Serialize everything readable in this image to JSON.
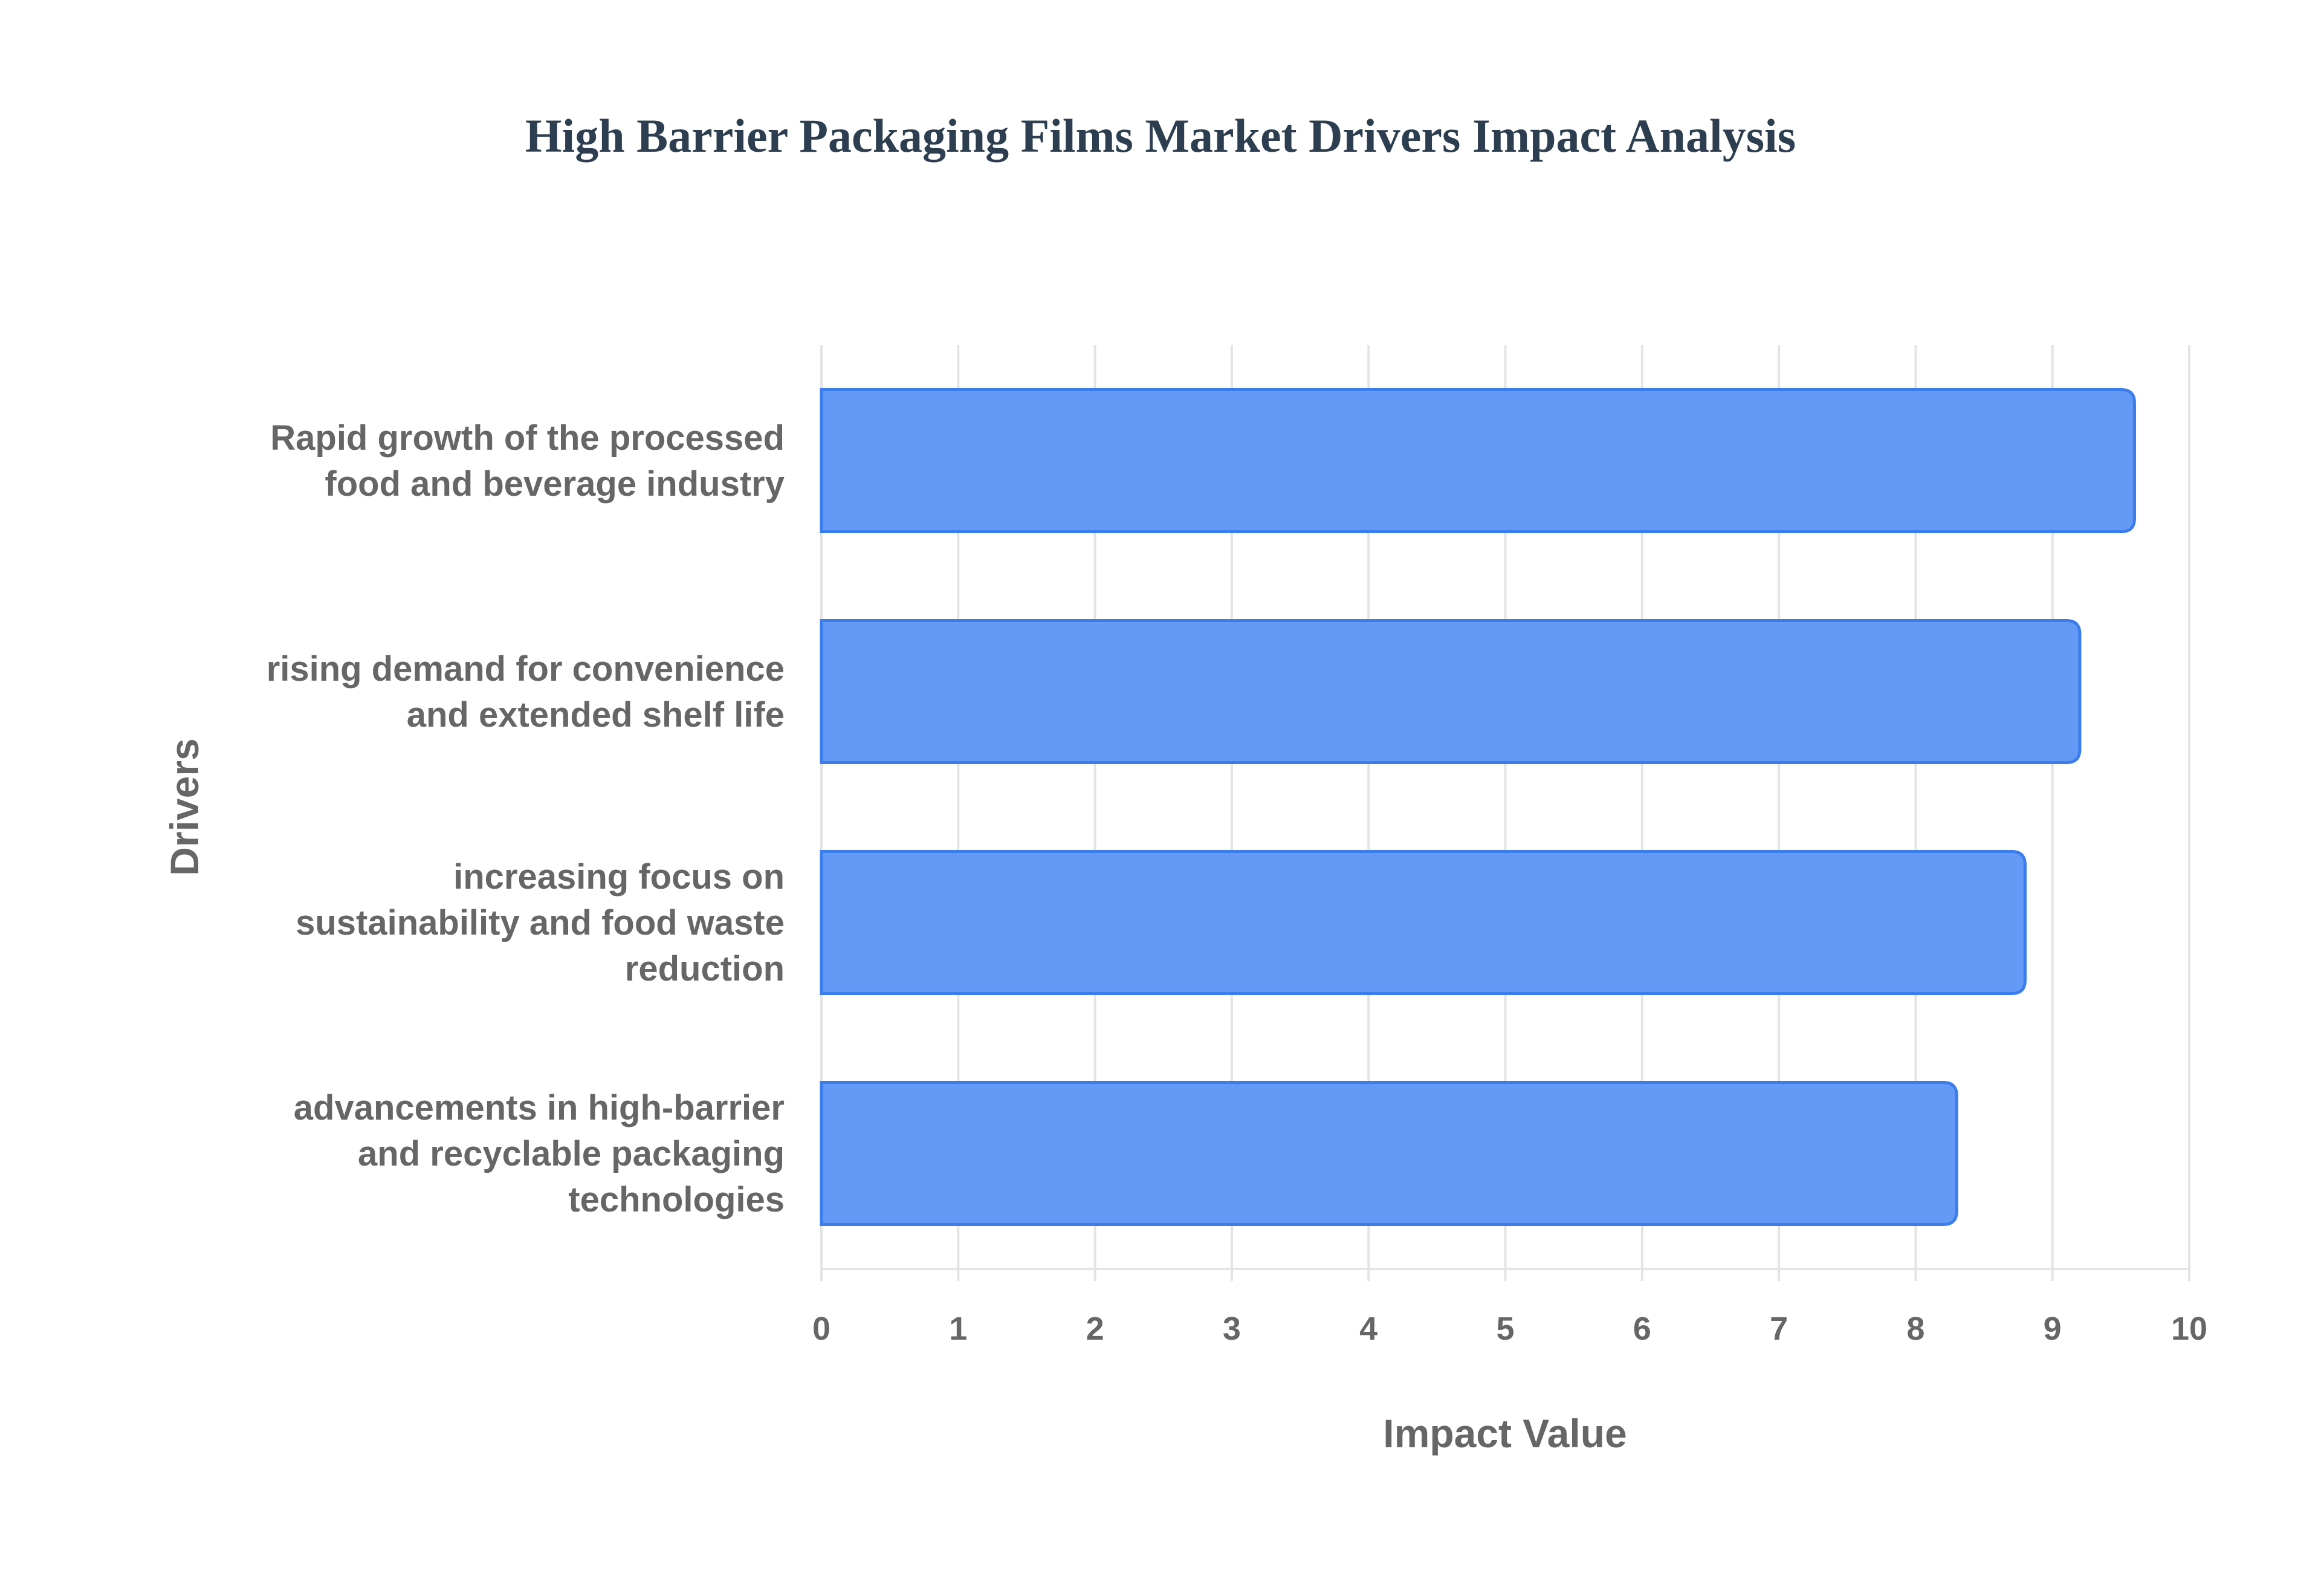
{
  "chart_data": {
    "type": "bar",
    "orientation": "horizontal",
    "title": "High Barrier Packaging Films Market Drivers Impact Analysis",
    "xlabel": "Impact Value",
    "ylabel": "Drivers",
    "xlim": [
      0,
      10
    ],
    "xticks": [
      "0",
      "1",
      "2",
      "3",
      "4",
      "5",
      "6",
      "7",
      "8",
      "9",
      "10"
    ],
    "grid": true,
    "bar_color": "#6499f5",
    "bar_border_color": "#3b7ded",
    "categories": [
      [
        "Rapid growth of the processed",
        "food and beverage industry"
      ],
      [
        "rising demand for convenience",
        "and extended shelf life"
      ],
      [
        "increasing focus on",
        "sustainability and food waste",
        "reduction"
      ],
      [
        "advancements in high-barrier",
        "and recyclable packaging",
        "technologies"
      ]
    ],
    "values": [
      9.6,
      9.2,
      8.8,
      8.3
    ]
  }
}
